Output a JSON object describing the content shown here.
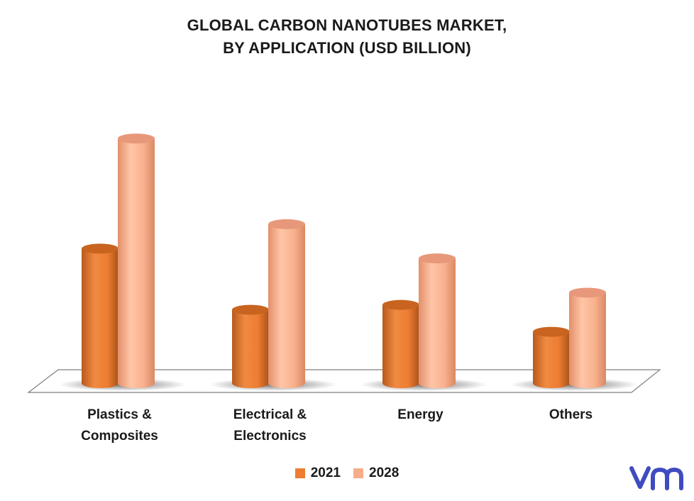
{
  "chart_data": {
    "type": "bar",
    "title": [
      "GLOBAL CARBON NANOTUBES MARKET,",
      "BY APPLICATION (USD BILLION)"
    ],
    "categories": [
      [
        "Plastics &",
        "Composites"
      ],
      [
        "Electrical &",
        "Electronics"
      ],
      [
        "Energy"
      ],
      [
        "Others"
      ]
    ],
    "series": [
      {
        "name": "2021",
        "color": "#ED7D31",
        "values": [
          0.55,
          0.3,
          0.32,
          0.21
        ]
      },
      {
        "name": "2028",
        "color": "#F7AD8A",
        "values": [
          1.0,
          0.65,
          0.51,
          0.37
        ]
      }
    ],
    "ylim": [
      0,
      1.05
    ],
    "grid": false,
    "legend": "bottom",
    "style": "3d-cylinder"
  },
  "logo": {
    "icon": "vmr-logo-icon",
    "color": "#3F4BC0"
  }
}
